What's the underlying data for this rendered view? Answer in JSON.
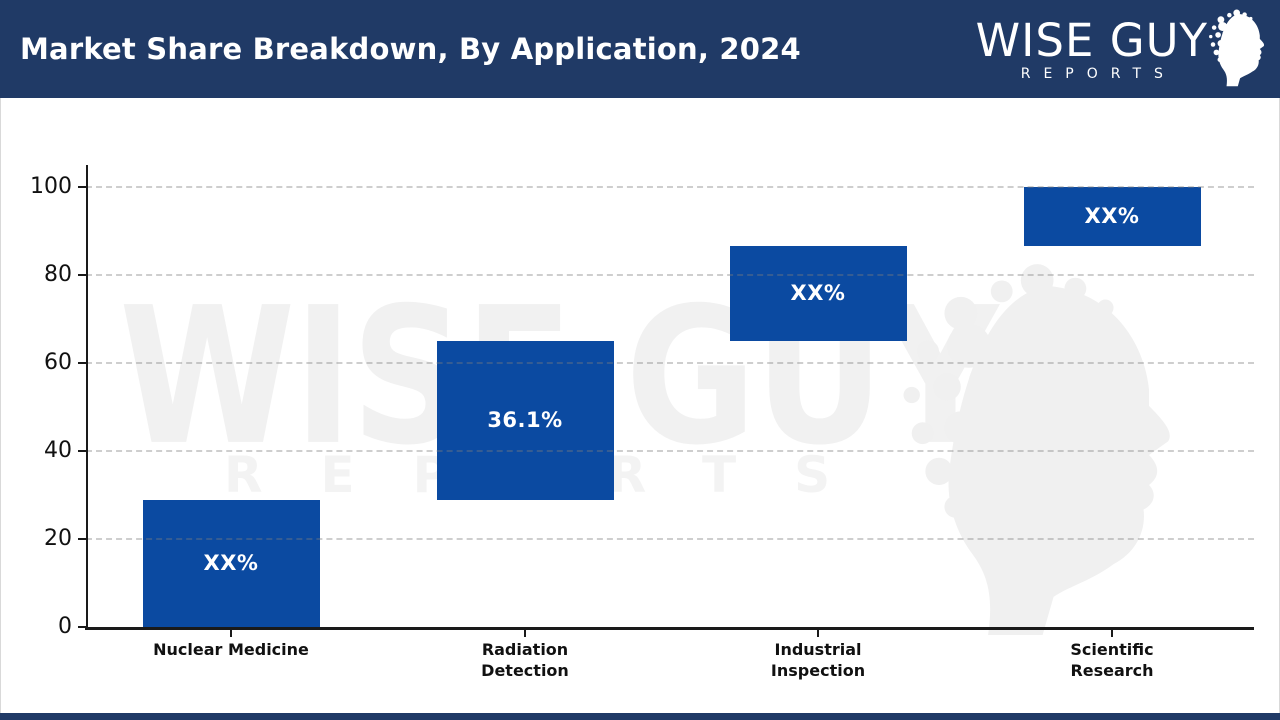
{
  "header": {
    "title": "Market Share Breakdown, By Application, 2024",
    "logo": {
      "line1": "WISE GUY",
      "line2": "REPORTS"
    }
  },
  "watermark": {
    "line1": "WISE GUY",
    "line2": "REPORTS"
  },
  "colors": {
    "header_bg": "#203a66",
    "footer_bg": "#203a66",
    "bar": "#0b4aa1",
    "bar_label": "#ffffff",
    "axis": "#1a1a1a",
    "watermark": "#f1f1f1"
  },
  "chart_data": {
    "type": "bar",
    "subtype": "floating-waterfall",
    "title": "Market Share Breakdown, By Application, 2024",
    "xlabel": "",
    "ylabel": "",
    "ylim": [
      0,
      105
    ],
    "yticks": [
      "0",
      "20",
      "40",
      "60",
      "80",
      "100"
    ],
    "ytick_values": [
      0,
      20,
      40,
      60,
      80,
      100
    ],
    "grid": "dashed-horizontal",
    "legend": "none",
    "categories": [
      "Nuclear Medicine",
      "Radiation Detection",
      "Industrial Inspection",
      "Scientific Research"
    ],
    "category_lines": [
      [
        "Nuclear Medicine"
      ],
      [
        "Radiation",
        "Detection"
      ],
      [
        "Industrial",
        "Inspection"
      ],
      [
        "Scientific",
        "Research"
      ]
    ],
    "segments": [
      {
        "category": "Nuclear Medicine",
        "start": 0,
        "end": 28.9,
        "label": "XX%"
      },
      {
        "category": "Radiation Detection",
        "start": 28.9,
        "end": 65.0,
        "label": "36.1%"
      },
      {
        "category": "Industrial Inspection",
        "start": 65.0,
        "end": 86.6,
        "label": "XX%"
      },
      {
        "category": "Scientific Research",
        "start": 86.6,
        "end": 100,
        "label": "XX%"
      }
    ]
  }
}
